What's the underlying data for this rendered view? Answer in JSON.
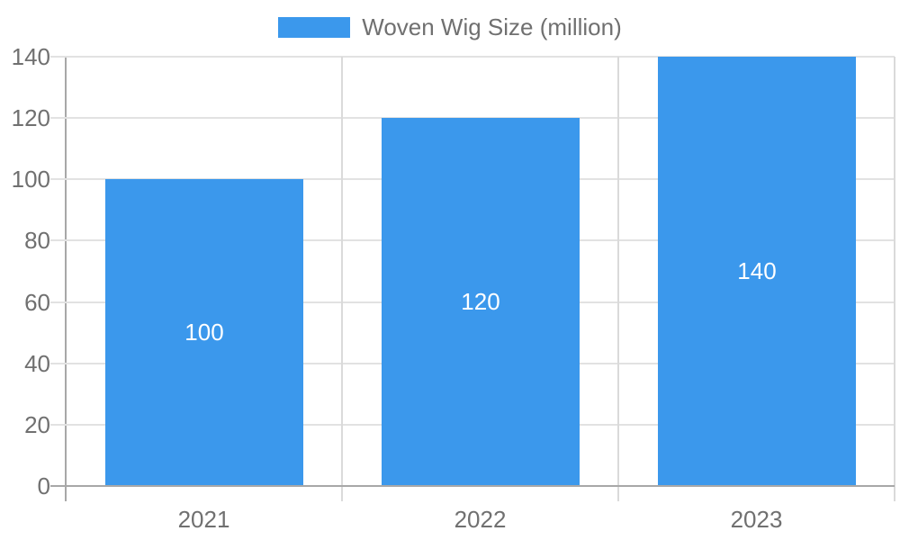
{
  "chart_data": {
    "type": "bar",
    "title": "",
    "categories": [
      "2021",
      "2022",
      "2023"
    ],
    "series": [
      {
        "name": "Woven Wig Size (million)",
        "values": [
          100,
          120,
          140
        ]
      }
    ],
    "bar_value_labels": [
      "100",
      "120",
      "140"
    ],
    "xlabel": "",
    "ylabel": "",
    "ylim": [
      0,
      140
    ],
    "yticks": [
      0,
      20,
      40,
      60,
      80,
      100,
      120,
      140
    ],
    "grid": "horizontal gridlines plus vertical category-boundary lines",
    "legend_position": "top-center",
    "colors": {
      "bar": "#3b98ec",
      "axis_line": "#a8a8a8",
      "grid_line": "#e2e2e2",
      "boundary_line": "#dadada",
      "axis_label": "#707070",
      "bar_label": "#ffffff",
      "background": "#ffffff"
    }
  }
}
